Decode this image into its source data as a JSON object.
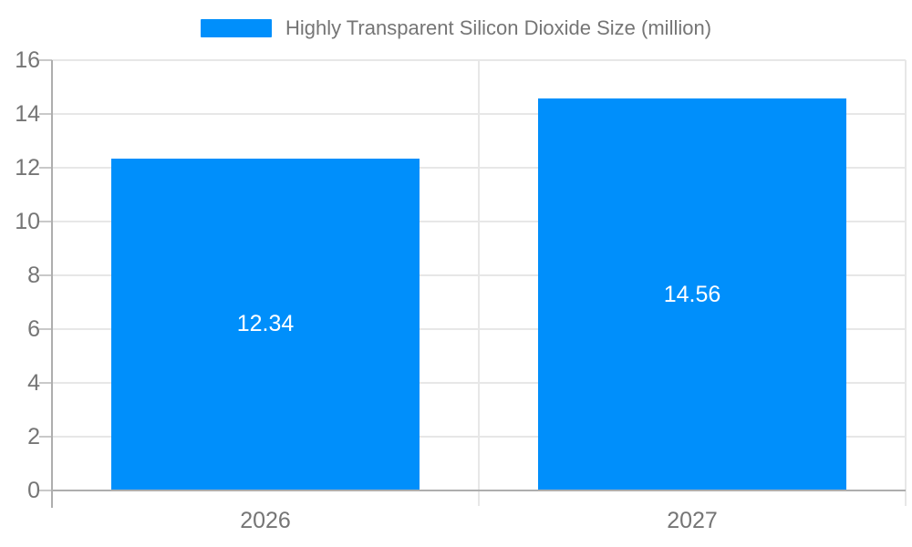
{
  "chart_data": {
    "type": "bar",
    "title": "Highly Transparent Silicon Dioxide Size (million)",
    "categories": [
      "2026",
      "2027"
    ],
    "series": [
      {
        "name": "Highly Transparent Silicon Dioxide Size (million)",
        "values": [
          12.34,
          14.56
        ]
      }
    ],
    "value_labels": [
      "12.34",
      "14.56"
    ],
    "xlabel": "",
    "ylabel": "",
    "ylim": [
      0,
      16
    ],
    "y_ticks": [
      0,
      2,
      4,
      6,
      8,
      10,
      12,
      14,
      16
    ],
    "grid": true,
    "legend_position": "top",
    "colors": {
      "bar": "#008FFB",
      "label_text": "#757575",
      "gridline": "#e7e7e7",
      "tick": "#c9c9c9",
      "axis_line": "#aeaeae",
      "data_label": "#ffffff",
      "background": "#ffffff"
    }
  }
}
